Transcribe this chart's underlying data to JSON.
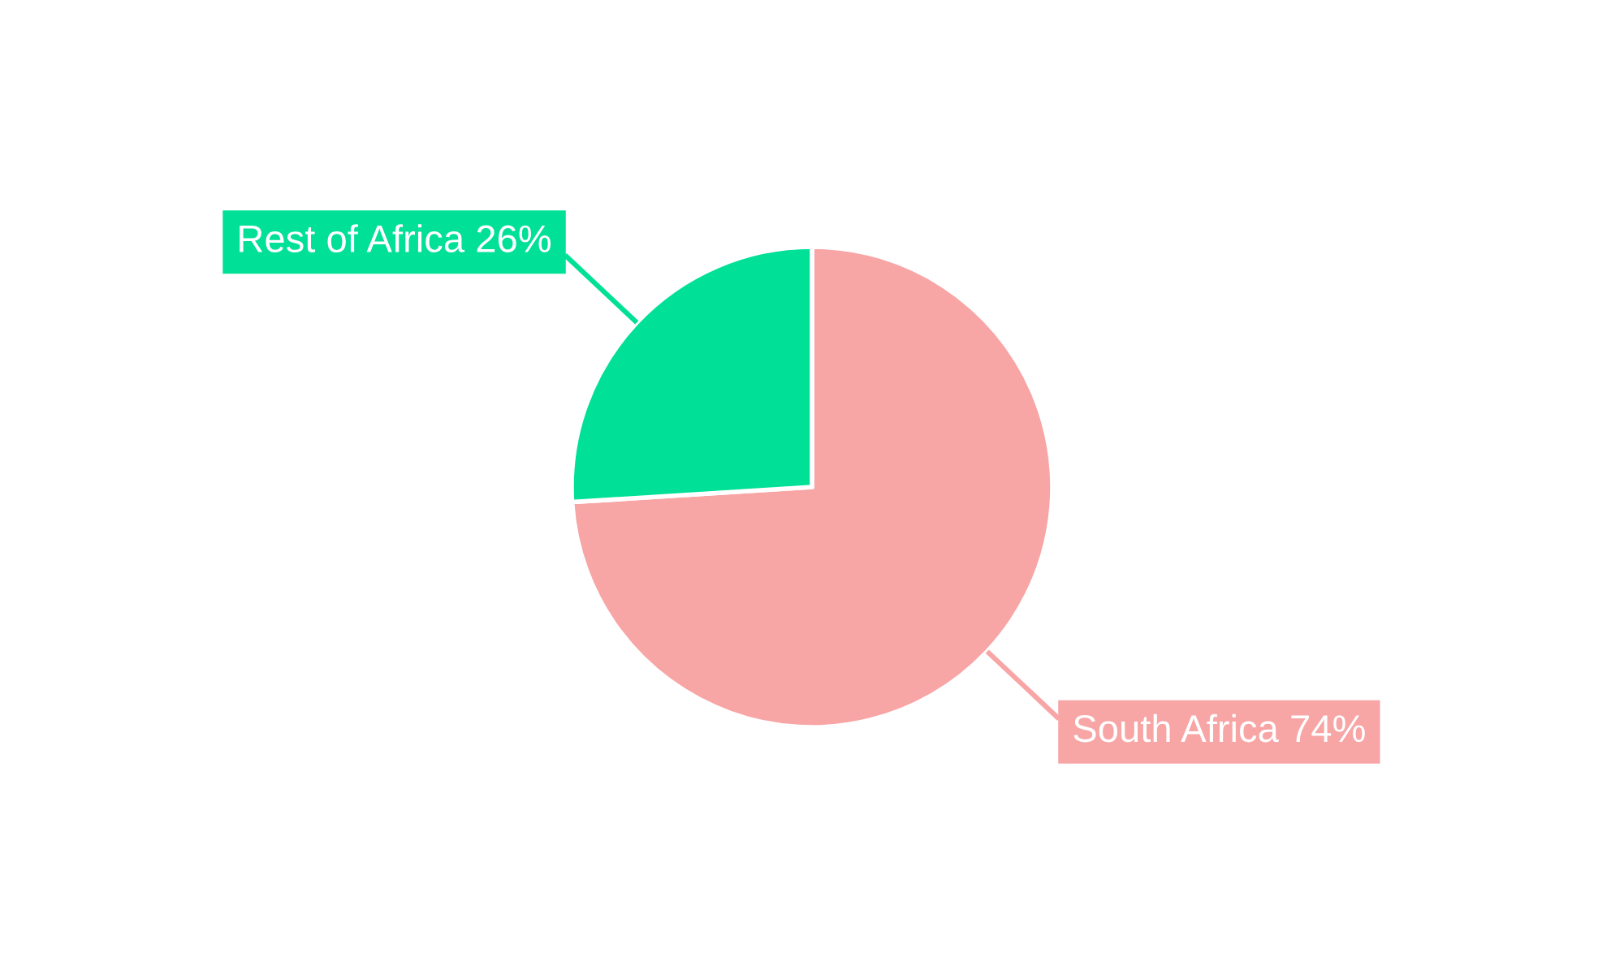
{
  "chart_data": {
    "type": "pie",
    "categories": [
      "South Africa",
      "Rest of Africa"
    ],
    "values": [
      74,
      26
    ],
    "value_labels": [
      "74%",
      "26%"
    ],
    "colors": [
      "#f8a5a6",
      "#00e096"
    ]
  }
}
